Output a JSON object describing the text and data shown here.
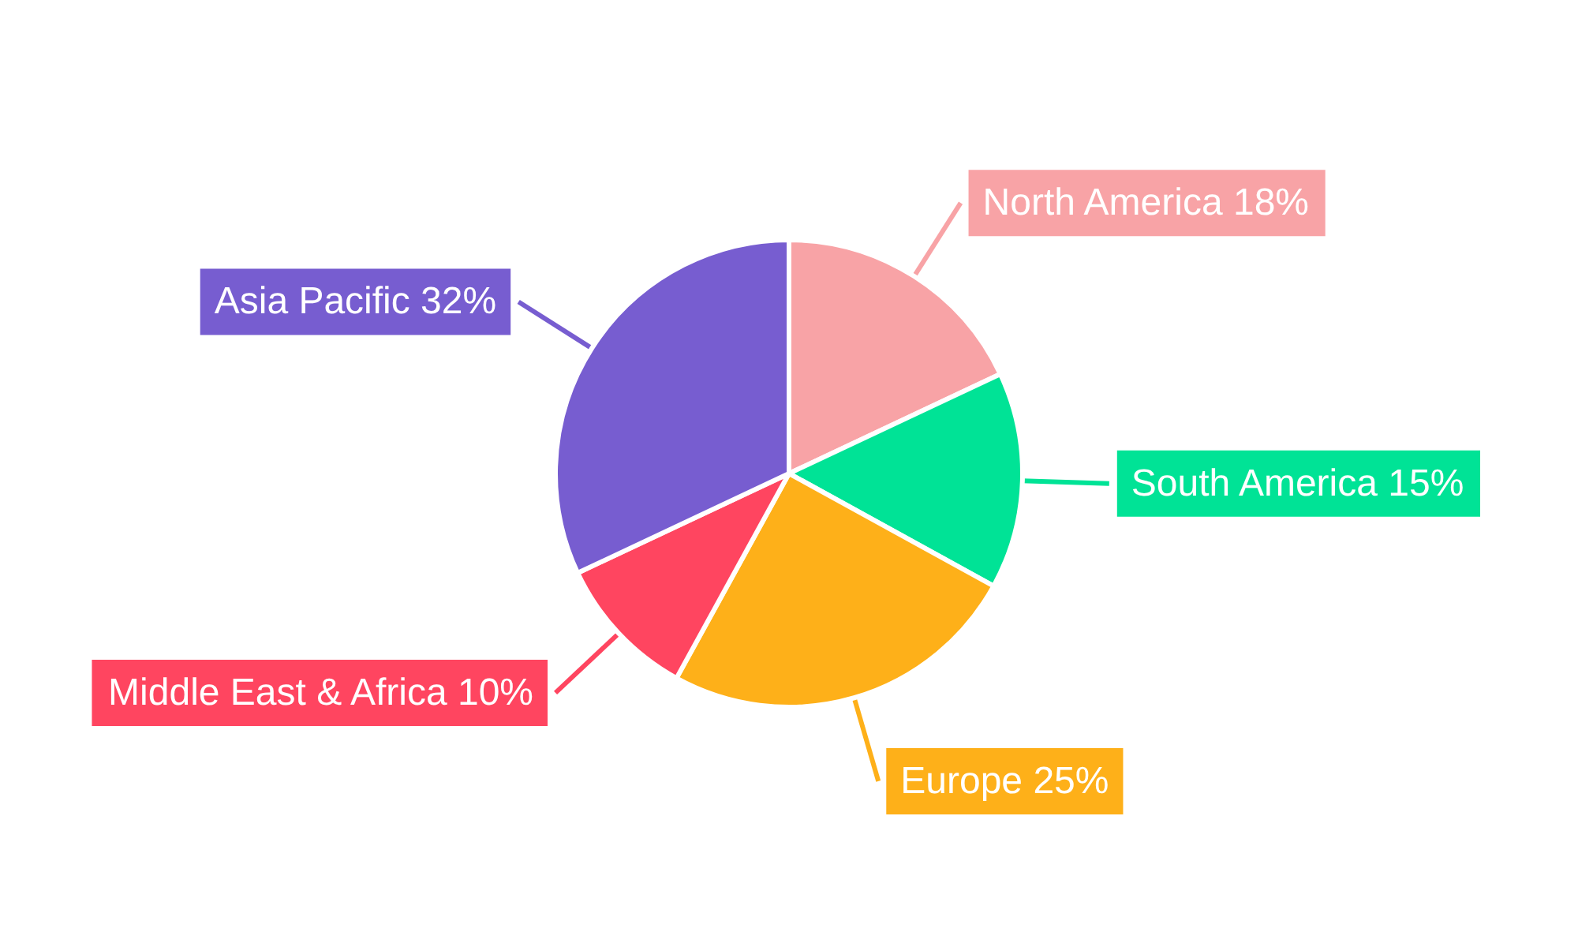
{
  "chart_data": {
    "type": "pie",
    "categories": [
      "North America",
      "South America",
      "Europe",
      "Middle East & Africa",
      "Asia Pacific"
    ],
    "values": [
      18,
      15,
      25,
      10,
      32
    ],
    "value_labels": [
      "18%",
      "15%",
      "25%",
      "10%",
      "32%"
    ],
    "colors": [
      "#f8a3a6",
      "#00e396",
      "#feb019",
      "#ff4560",
      "#775dd0"
    ],
    "legend": false
  }
}
